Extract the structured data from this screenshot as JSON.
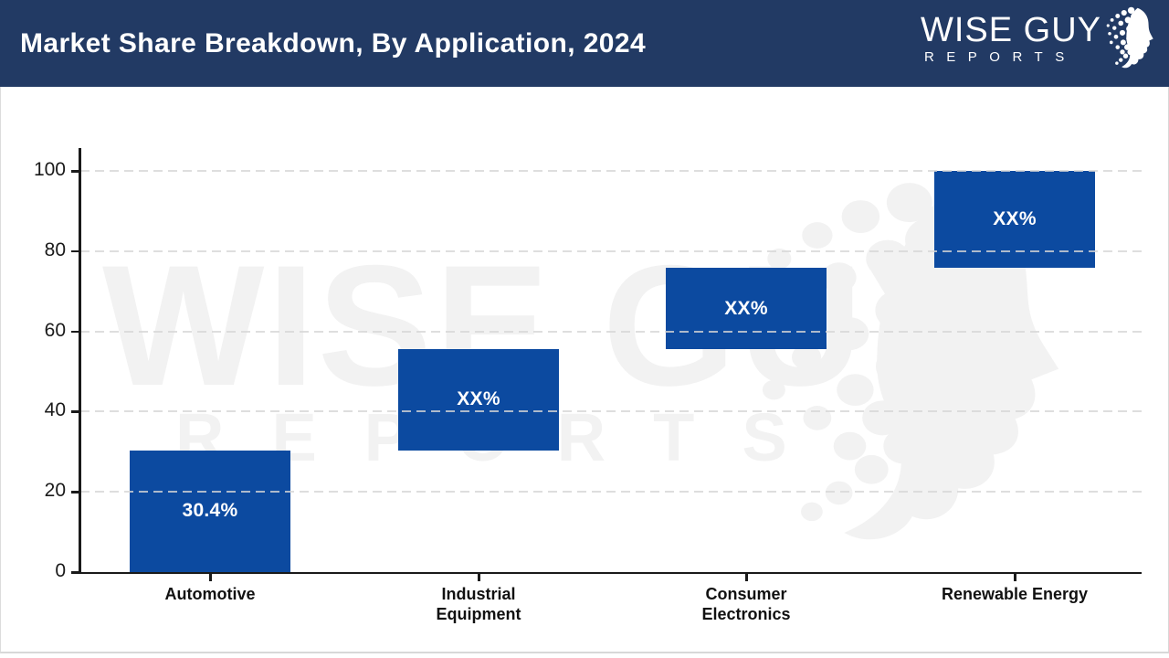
{
  "header": {
    "title": "Market Share Breakdown, By Application, 2024",
    "logo": {
      "line1": "WISE GUY",
      "line2": "REPORTS"
    }
  },
  "watermark": {
    "line1": "WISE GUY",
    "line2": "REPORTS"
  },
  "colors": {
    "header_bg": "#223a64",
    "bar_fill": "#0c4aa0",
    "bar_label": "#ffffff",
    "axis": "#1a1a1a",
    "tick_label": "#1a1a1a",
    "gridline": "#d9d9d9",
    "watermark": "#f2f2f2"
  },
  "chart_data": {
    "type": "bar",
    "subtype": "waterfall",
    "title": "Market Share Breakdown, By Application, 2024",
    "categories": [
      "Automotive",
      "Industrial\nEquipment",
      "Consumer\nElectronics",
      "Renewable Energy"
    ],
    "segments": [
      {
        "category": "Automotive",
        "start": 0,
        "end": 30.4,
        "value": 30.4,
        "label": "30.4%"
      },
      {
        "category": "Industrial Equipment",
        "start": 30.4,
        "end": 55.5,
        "value": 25.1,
        "label": "XX%"
      },
      {
        "category": "Consumer Electronics",
        "start": 55.5,
        "end": 75.9,
        "value": 20.4,
        "label": "XX%"
      },
      {
        "category": "Renewable Energy",
        "start": 75.9,
        "end": 100,
        "value": 24.1,
        "label": "XX%"
      }
    ],
    "y_ticks": [
      0,
      20,
      40,
      60,
      80,
      100
    ],
    "ylim": [
      0,
      105
    ],
    "xlabel": "",
    "ylabel": "",
    "grid": "horizontal-dashed",
    "legend": "none"
  }
}
